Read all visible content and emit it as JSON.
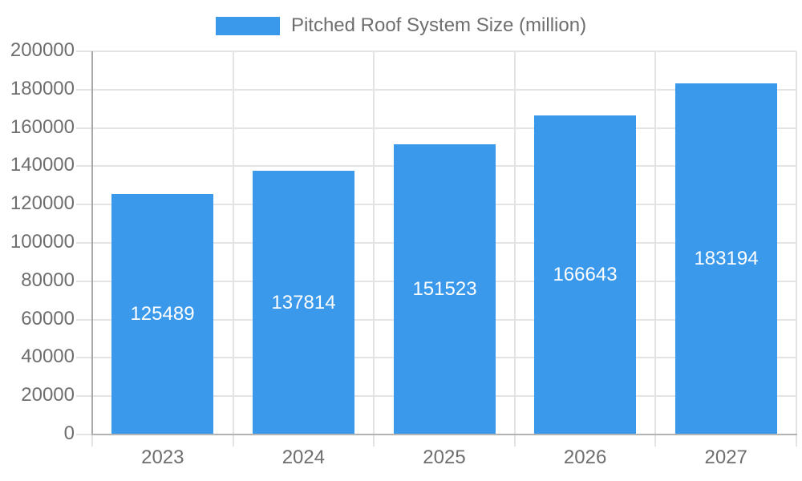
{
  "legend": {
    "label": "Pitched Roof System Size (million)",
    "swatch_color": "#3b99ec"
  },
  "chart_data": {
    "type": "bar",
    "title": "Pitched Roof System Size (million)",
    "categories": [
      "2023",
      "2024",
      "2025",
      "2026",
      "2027"
    ],
    "values": [
      125489,
      137814,
      151523,
      166643,
      183194
    ],
    "series_name": "Pitched Roof System Size (million)",
    "xlabel": "",
    "ylabel": "",
    "ylim": [
      0,
      200000
    ],
    "ytick_step": 20000,
    "ytick_labels": [
      "0",
      "20000",
      "40000",
      "60000",
      "80000",
      "100000",
      "120000",
      "140000",
      "160000",
      "180000",
      "200000"
    ],
    "grid": true,
    "legend_position": "top-center",
    "bar_color": "#3b99ec",
    "value_label_color": "#ffffff",
    "value_labels_inside_bars": true
  },
  "colors": {
    "background": "#ffffff",
    "gridline": "#e4e4e4",
    "axis_line": "#aaaaaa",
    "axis_text": "#6e6e6e"
  }
}
